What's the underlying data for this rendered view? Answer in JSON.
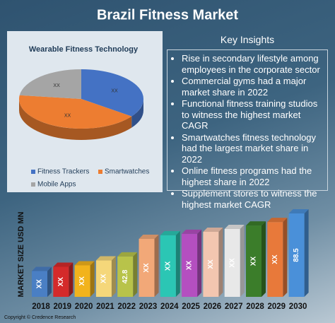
{
  "title": "Brazil Fitness Market",
  "key_insights": {
    "title": "Key Insights",
    "items": [
      "Rise in secondary lifestyle among employees in the corporate sector",
      "Commercial gyms had a major market share in 2022",
      "Functional fitness training studios to witness the highest market CAGR",
      "Smartwatches fitness technology had the largest market share in 2022",
      "Online fitness programs had the highest share in 2022",
      "Supplement stores to witness the highest market CAGR"
    ]
  },
  "footer": "Copyright © Credence Research",
  "chart_data": [
    {
      "type": "pie",
      "title": "Wearable Fitness Technology",
      "categories": [
        "Fitness Trackers",
        "Smartwatches",
        "Mobile Apps"
      ],
      "values": [
        35,
        42,
        23
      ],
      "value_labels": [
        "XX",
        "XX",
        "XX"
      ],
      "colors": [
        "#4472c4",
        "#ed7d31",
        "#a5a5a5"
      ]
    },
    {
      "type": "bar",
      "y_label": "MARKET SIZE USD MN",
      "categories": [
        "2018",
        "2019",
        "2020",
        "2021",
        "2022",
        "2023",
        "2024",
        "2025",
        "2026",
        "2027",
        "2028",
        "2029",
        "2030"
      ],
      "values": [
        27.4,
        31.9,
        33.4,
        38.6,
        42.8,
        61.5,
        65.3,
        66.8,
        69,
        72,
        75.7,
        79.4,
        88.5
      ],
      "value_labels": [
        "XX",
        "XX",
        "XX",
        "XX",
        "42.8",
        "XX",
        "XX",
        "XX",
        "XX",
        "XX",
        "XX",
        "XX",
        "88.5"
      ],
      "colors": [
        "#4a7fc4",
        "#d42a2a",
        "#f2b31c",
        "#f5d77a",
        "#b8c34a",
        "#f2a878",
        "#2bc6b4",
        "#b44fc0",
        "#f3c6b0",
        "#e8e8e8",
        "#3b7d2a",
        "#e8793a",
        "#4a90d9"
      ]
    }
  ]
}
